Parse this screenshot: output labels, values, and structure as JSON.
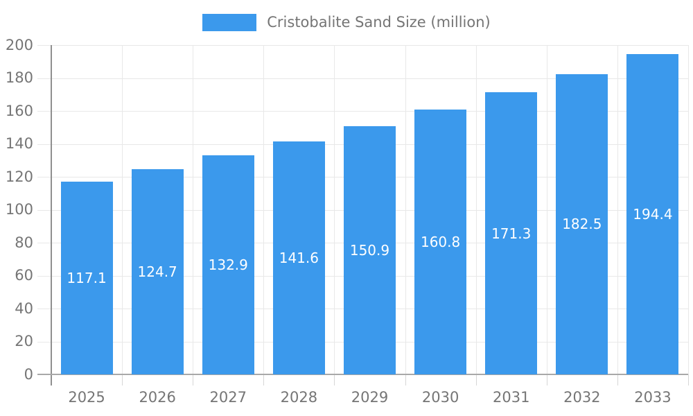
{
  "chart_data": {
    "type": "bar",
    "title": "Cristobalite Sand Size (million)",
    "categories": [
      "2025",
      "2026",
      "2027",
      "2028",
      "2029",
      "2030",
      "2031",
      "2032",
      "2033"
    ],
    "series": [
      {
        "name": "Cristobalite Sand Size (million)",
        "values": [
          117.1,
          124.7,
          132.9,
          141.6,
          150.9,
          160.8,
          171.3,
          182.5,
          194.4
        ]
      }
    ],
    "value_labels": [
      117.1,
      124.7,
      132.9,
      141.6,
      150.9,
      160.8,
      171.3,
      182.5,
      194.4
    ],
    "xlabel": "",
    "ylabel": "",
    "ylim": [
      0,
      200
    ],
    "yticks": [
      0,
      20,
      40,
      60,
      80,
      100,
      120,
      140,
      160,
      180,
      200
    ],
    "grid": true,
    "legend_position": "top-center",
    "value_label_position": "inside-center",
    "colors": {
      "bar": "#3b99ec",
      "bar_value_text": "#ffffff",
      "grid": "#e8e8e8",
      "y_axis_line": "#8f8f8f",
      "x_baseline": "#a8a8a8",
      "tick_stub": "#d6d6d6",
      "axis_label_text": "#757575",
      "legend_text": "#757575",
      "background": "#ffffff"
    }
  }
}
